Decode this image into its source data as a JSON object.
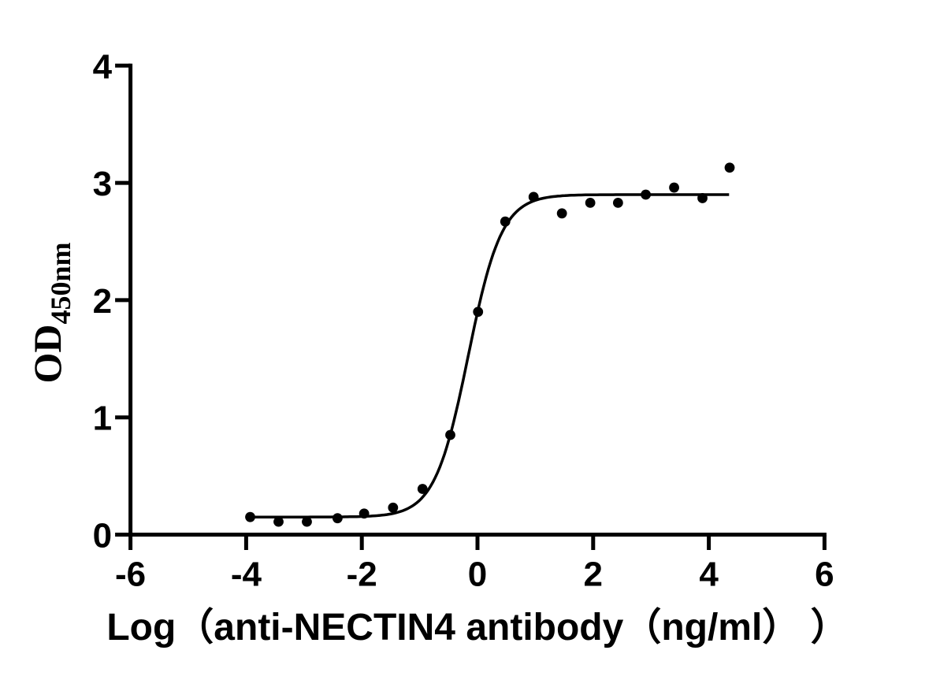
{
  "figure": {
    "background_color": "#ffffff",
    "foreground_color": "#000000"
  },
  "chart_data": {
    "type": "scatter",
    "title": "",
    "xlabel": "Log（anti-NECTIN4 antibody（ng/ml） ）",
    "ylabel_main": "OD",
    "ylabel_subscript": "450nm",
    "xlim": [
      -6,
      6
    ],
    "ylim": [
      0,
      4
    ],
    "x_ticks": [
      -6,
      -4,
      -2,
      0,
      2,
      4,
      6
    ],
    "y_ticks": [
      0,
      1,
      2,
      3,
      4
    ],
    "grid": false,
    "legend": null,
    "marker": {
      "shape": "circle",
      "color": "#000000"
    },
    "points": [
      {
        "x": -3.93,
        "y": 0.15
      },
      {
        "x": -3.44,
        "y": 0.11
      },
      {
        "x": -2.95,
        "y": 0.11
      },
      {
        "x": -2.42,
        "y": 0.14
      },
      {
        "x": -1.96,
        "y": 0.18
      },
      {
        "x": -1.46,
        "y": 0.23
      },
      {
        "x": -0.95,
        "y": 0.39
      },
      {
        "x": -0.47,
        "y": 0.85
      },
      {
        "x": 0.01,
        "y": 1.9
      },
      {
        "x": 0.48,
        "y": 2.67
      },
      {
        "x": 0.97,
        "y": 2.88
      },
      {
        "x": 1.46,
        "y": 2.74
      },
      {
        "x": 1.95,
        "y": 2.83
      },
      {
        "x": 2.43,
        "y": 2.83
      },
      {
        "x": 2.91,
        "y": 2.9
      },
      {
        "x": 3.4,
        "y": 2.96
      },
      {
        "x": 3.89,
        "y": 2.87
      },
      {
        "x": 4.36,
        "y": 3.13
      }
    ],
    "fit_curve": {
      "model": "four-parameter-logistic",
      "bottom": 0.15,
      "top": 2.9,
      "hill_slope": 1.5,
      "log_ec50": -0.16,
      "x_start": -3.93,
      "x_end": 4.38
    }
  }
}
